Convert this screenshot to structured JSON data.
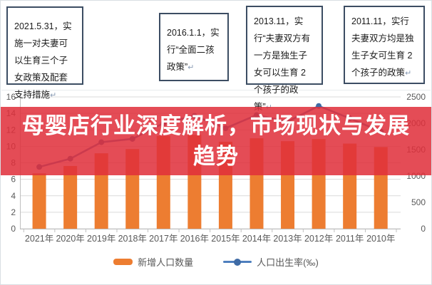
{
  "policy_boxes": [
    {
      "text": "2021.5.31，实施一对夫妻可以生育三个子女政策及配套支持措施",
      "return_mark": "↵"
    },
    {
      "text": "2016.1.1，实行“全面二孩政策”",
      "return_mark": "↵"
    },
    {
      "text": "2013.11，实行“夫妻双方有一方是独生子女可以生育 2 个孩子的政策”",
      "return_mark": "↵"
    },
    {
      "text": "2011.11，实行夫妻双方均是独生子女可生育 2 个孩子的政策",
      "return_mark": "↵"
    }
  ],
  "overlay": {
    "line1": "母婴店行业深度解析，市场现状与发展",
    "line2": "趋势",
    "bg_color": "#e02e3a",
    "bg_opacity": 0.86,
    "text_color": "#ffffff"
  },
  "chart_data": {
    "type": "bar+line combo",
    "categories": [
      "2021年",
      "2020年",
      "2019年",
      "2018年",
      "2017年",
      "2016年",
      "2015年",
      "2014年",
      "2013年",
      "2012年",
      "2011年",
      "2010年"
    ],
    "series": [
      {
        "name": "新增人口数量",
        "type": "bar",
        "axis": "right",
        "color": "#ed7d31",
        "values": [
          1050,
          1190,
          1430,
          1510,
          1760,
          1780,
          1650,
          1715,
          1660,
          1700,
          1615,
          1550
        ]
      },
      {
        "name": "人口出生率(‰)",
        "type": "line",
        "axis": "left",
        "color": "#4e7fbe",
        "marker_color": "#3f6ba5",
        "values": [
          7.5,
          8.5,
          10.5,
          10.9,
          12.8,
          13.7,
          12.2,
          13.8,
          13.0,
          14.9,
          13.4,
          11.8
        ]
      }
    ],
    "left_axis": {
      "min": 0,
      "max": 16,
      "step": 2,
      "tick_labels": [
        "0",
        "2",
        "4",
        "6",
        "8",
        "10",
        "12",
        "14",
        "16"
      ]
    },
    "right_axis": {
      "min": 0,
      "max": 2500,
      "step": 500,
      "tick_labels": [
        "0",
        "500",
        "1000",
        "1500",
        "2000",
        "2500"
      ]
    },
    "grid": true,
    "legend_position": "bottom",
    "axis_text_color": "#595959",
    "gridline_color": "#d9d9d9",
    "axis_line_color": "#bfbfbf"
  }
}
